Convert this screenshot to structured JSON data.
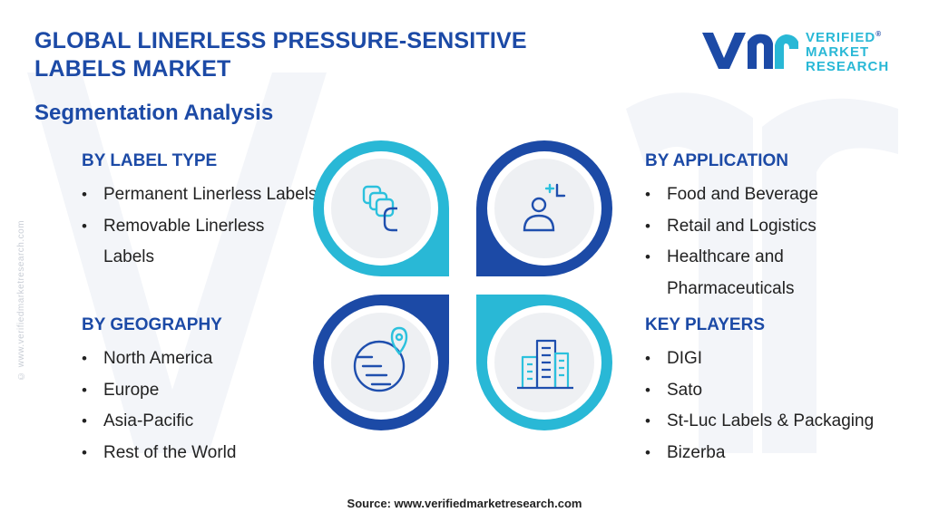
{
  "header": {
    "title": "GLOBAL LINERLESS PRESSURE-SENSITIVE LABELS MARKET",
    "subtitle": "Segmentation Analysis"
  },
  "logo": {
    "line1": "VERIFIED",
    "line2": "MARKET",
    "line3": "RESEARCH",
    "registered": "®"
  },
  "side_url": "© www.verifiedmarketresearch.com",
  "sections": {
    "label_type": {
      "heading": "BY LABEL TYPE",
      "items": [
        "Permanent Linerless Labels",
        "Removable Linerless Labels"
      ]
    },
    "geography": {
      "heading": "BY GEOGRAPHY",
      "items": [
        "North America",
        "Europe",
        "Asia-Pacific",
        "Rest of the World"
      ]
    },
    "application": {
      "heading": "BY APPLICATION",
      "items": [
        "Food and Beverage",
        "Retail and Logistics",
        "Healthcare and Pharmaceuticals"
      ]
    },
    "key_players": {
      "heading": "KEY PLAYERS",
      "items": [
        "DIGI",
        "Sato",
        "St-Luc Labels & Packaging",
        "Bizerba"
      ]
    }
  },
  "icons": {
    "top_left": "label-stack-icon",
    "top_right": "person-target-icon",
    "bottom_left": "globe-location-icon",
    "bottom_right": "city-buildings-icon"
  },
  "colors": {
    "navy": "#1c4aa6",
    "cyan": "#29b8d6",
    "icon_blue": "#1f4fae",
    "icon_cyan": "#2cc1dd"
  },
  "footer": {
    "source": "Source: www.verifiedmarketresearch.com"
  }
}
